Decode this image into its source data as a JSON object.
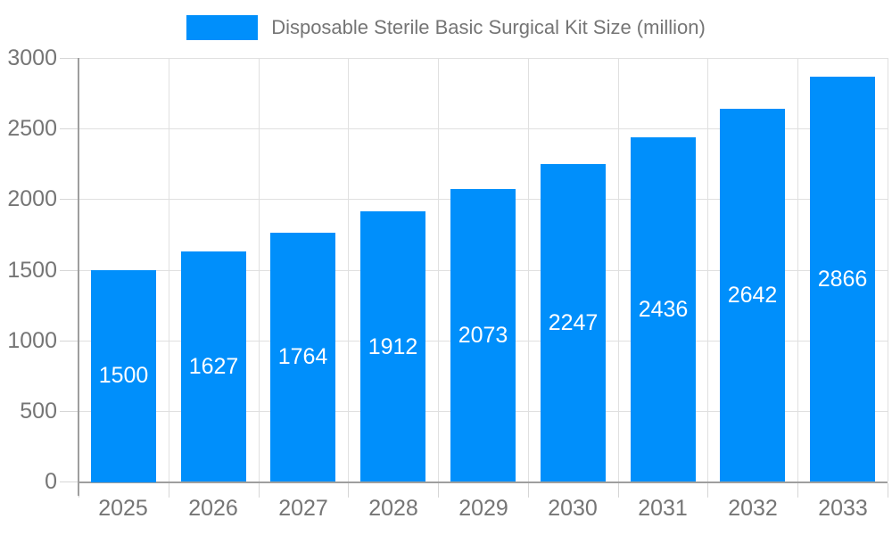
{
  "chart_data": {
    "type": "bar",
    "title": "",
    "legend": {
      "label": "Disposable Sterile Basic Surgical Kit Size (million)",
      "position": "top"
    },
    "series": [
      {
        "name": "Disposable Sterile Basic Surgical Kit Size (million)",
        "values": [
          1500,
          1627,
          1764,
          1912,
          2073,
          2247,
          2436,
          2642,
          2866
        ]
      }
    ],
    "categories": [
      "2025",
      "2026",
      "2027",
      "2028",
      "2029",
      "2030",
      "2031",
      "2032",
      "2033"
    ],
    "xlabel": "",
    "ylabel": "",
    "ylim": [
      0,
      3000
    ],
    "ytick_step": 500,
    "ytick_labels": [
      "0",
      "500",
      "1000",
      "1500",
      "2000",
      "2500",
      "3000"
    ],
    "grid": true,
    "data_labels": "inside-center",
    "colors": {
      "bar": "#008FFB",
      "grid": "#e0e0e0",
      "axis_line": "#9e9e9e",
      "tick": "#d6d6d6",
      "axis_text": "#757575",
      "data_label_text": "#ffffff",
      "background": "#ffffff"
    }
  }
}
